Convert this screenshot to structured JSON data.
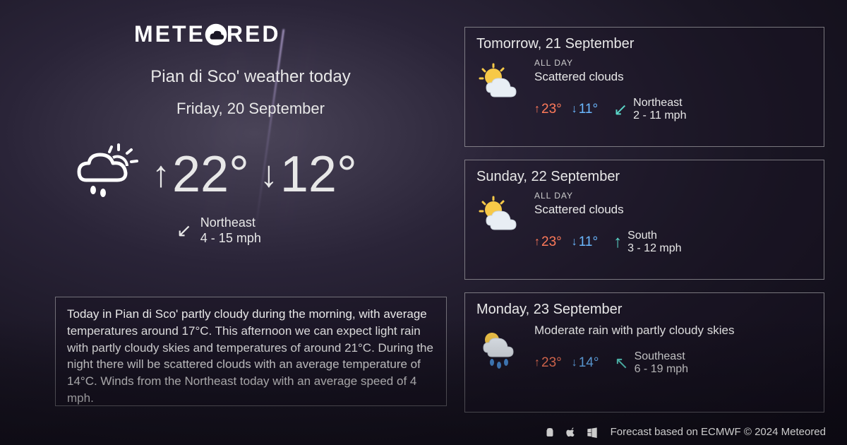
{
  "brand": {
    "name_before": "METE",
    "name_after": "RED"
  },
  "today": {
    "title": "Pian di Sco' weather today",
    "date": "Friday, 20 September",
    "high": "22°",
    "low": "12°",
    "wind_dir": "Northeast",
    "wind_speed": "4 - 15 mph",
    "wind_rotate_deg": 45,
    "summary": "Today in Pian di Sco' partly cloudy during the morning, with average temperatures around 17°C. This afternoon we can expect light rain with partly cloudy skies and temperatures of around 21°C. During the night there will be scattered clouds with an average temperature of 14°C. Winds from the Northeast today with an average speed of 4 mph."
  },
  "forecast": [
    {
      "date": "Tomorrow, 21 September",
      "all_day_label": "ALL DAY",
      "condition": "Scattered clouds",
      "icon": "partly-cloudy",
      "high": "23°",
      "low": "11°",
      "wind_dir": "Northeast",
      "wind_speed": "2 - 11 mph",
      "wind_rotate_deg": 45
    },
    {
      "date": "Sunday, 22 September",
      "all_day_label": "ALL DAY",
      "condition": "Scattered clouds",
      "icon": "partly-cloudy",
      "high": "23°",
      "low": "11°",
      "wind_dir": "South",
      "wind_speed": "3 - 12 mph",
      "wind_rotate_deg": 180
    },
    {
      "date": "Monday, 23 September",
      "all_day_label": "",
      "condition": "Moderate rain with partly cloudy skies",
      "icon": "rain",
      "high": "23°",
      "low": "14°",
      "wind_dir": "Southeast",
      "wind_speed": "6 - 19 mph",
      "wind_rotate_deg": 135
    }
  ],
  "footer": {
    "text": "Forecast based on ECMWF © 2024 Meteored"
  },
  "colors": {
    "text": "#e8e8e8",
    "high_temp": "#ff7a5a",
    "low_temp": "#6bb8ff",
    "wind_arrow": "#5ad6c8",
    "card_border": "rgba(200,200,200,0.55)"
  }
}
